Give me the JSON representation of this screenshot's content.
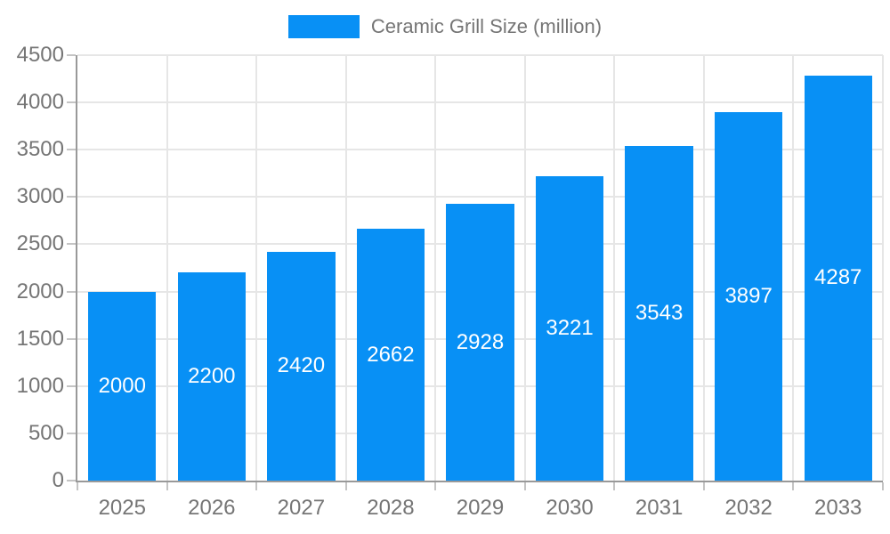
{
  "chart_data": {
    "type": "bar",
    "title": "",
    "legend": "Ceramic Grill Size (million)",
    "categories": [
      "2025",
      "2026",
      "2027",
      "2028",
      "2029",
      "2030",
      "2031",
      "2032",
      "2033"
    ],
    "values": [
      2000,
      2200,
      2420,
      2662,
      2928,
      3221,
      3543,
      3897,
      4287
    ],
    "xlabel": "",
    "ylabel": "",
    "ylim": [
      0,
      4500
    ],
    "yticks": [
      0,
      500,
      1000,
      1500,
      2000,
      2500,
      3000,
      3500,
      4000,
      4500
    ],
    "grid": true,
    "legend_position": "top-center",
    "colors": {
      "bar": "#0890f5",
      "bar_label": "#ffffff",
      "axis_line": "#999999",
      "grid_line": "#e6e6e6",
      "tick_mark": "#c4c4c4",
      "tick_label": "#757575",
      "legend_text": "#757575"
    }
  }
}
